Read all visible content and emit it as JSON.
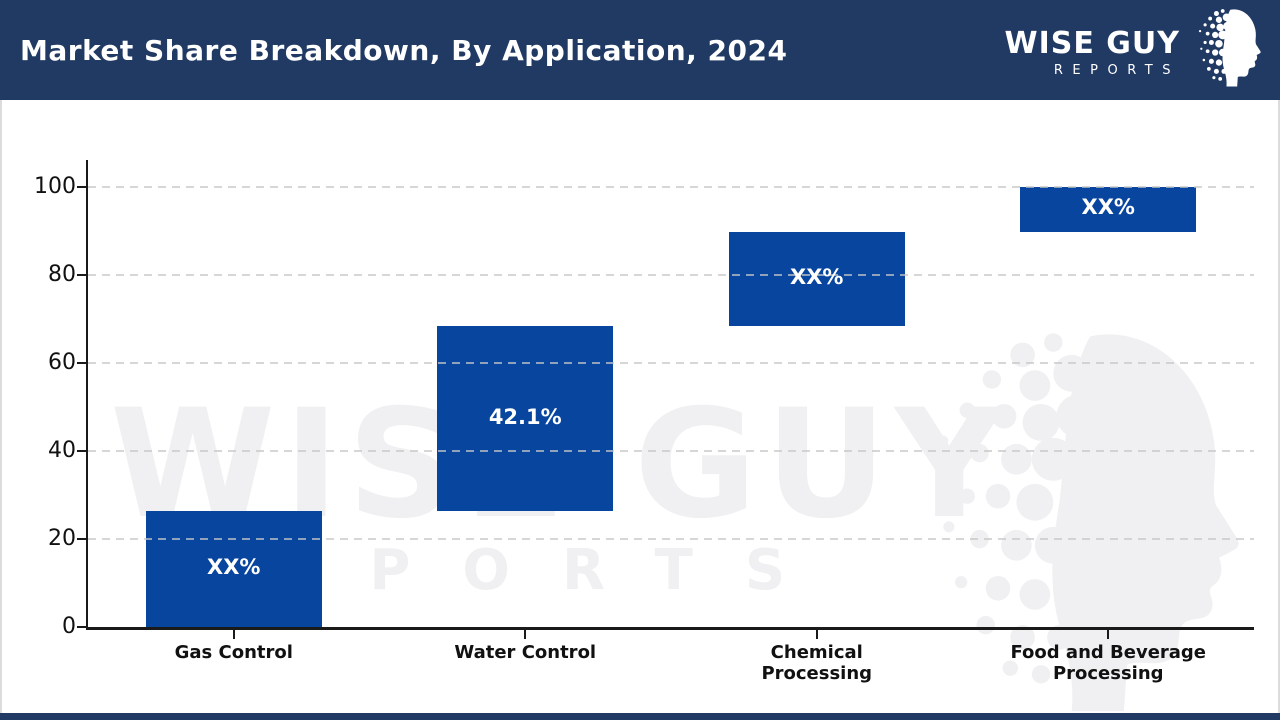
{
  "header": {
    "title": "Market Share Breakdown, By Application, 2024",
    "logo": {
      "line1": "WISE GUY",
      "line2": "REPORTS"
    }
  },
  "watermark": {
    "line1": "WISE GUY",
    "line2": "REPORTS"
  },
  "colors": {
    "header_bg": "#213A64",
    "bar_fill": "#07459E",
    "bar_label_text": "#FFFFFF",
    "axis_line": "#1A1A1A",
    "tick_label": "#111111",
    "gridline": "#C6C6C6",
    "watermark": "#F0F0F2"
  },
  "chart_data": {
    "type": "bar",
    "subtype": "waterfall",
    "title": "Market Share Breakdown, By Application, 2024",
    "xlabel": "",
    "ylabel": "",
    "ylim": [
      0,
      100
    ],
    "y_ticks": [
      0,
      20,
      40,
      60,
      80,
      100
    ],
    "grid": "horizontal dashed, drawn over bars",
    "legend": "none",
    "categories": [
      "Gas Control",
      "Water Control",
      "Chemical Processing",
      "Food and Beverage Processing"
    ],
    "category_label_lines": [
      [
        "Gas Control"
      ],
      [
        "Water Control"
      ],
      [
        "Chemical",
        "Processing"
      ],
      [
        "Food and Beverage",
        "Processing"
      ]
    ],
    "segments": [
      {
        "category": "Gas Control",
        "start": 0,
        "end": 26.3,
        "value_label": "XX%"
      },
      {
        "category": "Water Control",
        "start": 26.3,
        "end": 68.4,
        "value_label": "42.1%"
      },
      {
        "category": "Chemical Processing",
        "start": 68.4,
        "end": 89.8,
        "value_label": "XX%"
      },
      {
        "category": "Food and Beverage Processing",
        "start": 89.8,
        "end": 100,
        "value_label": "XX%"
      }
    ]
  }
}
